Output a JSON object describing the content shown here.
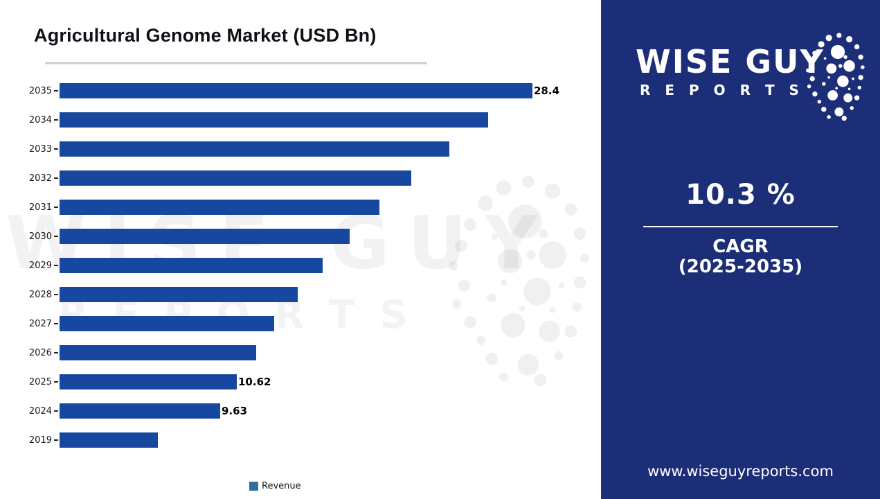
{
  "chart_data": {
    "type": "bar",
    "orientation": "horizontal",
    "title": "Agricultural Genome Market (USD Bn)",
    "xlabel": "",
    "ylabel": "",
    "xlim": [
      0,
      30
    ],
    "grid": false,
    "legend_position": "bottom-center",
    "categories": [
      "2035",
      "2034",
      "2033",
      "2032",
      "2031",
      "2030",
      "2029",
      "2028",
      "2027",
      "2026",
      "2025",
      "2024",
      "2019"
    ],
    "series": [
      {
        "name": "Revenue",
        "color": "#17479e",
        "values": [
          28.4,
          25.7,
          23.4,
          21.1,
          19.2,
          17.4,
          15.8,
          14.3,
          12.9,
          11.8,
          10.62,
          9.63,
          5.9
        ],
        "data_labels": [
          "28.4",
          "",
          "",
          "",
          "",
          "",
          "",
          "",
          "",
          "",
          "10.62",
          "9.63",
          ""
        ]
      }
    ]
  },
  "legend": {
    "items": [
      {
        "label": "Revenue",
        "color": "#2e6f9e"
      }
    ]
  },
  "watermark": {
    "line1": "WISE GUY",
    "line2": "R E P O R T S"
  },
  "sidebar": {
    "background_color": "#1c2e78",
    "logo_line1": "WISE GUY",
    "logo_line2": "R E P O R T S",
    "cagr_value": "10.3 %",
    "cagr_label": "CAGR",
    "cagr_period": "(2025-2035)",
    "website": "www.wiseguyreports.com"
  }
}
